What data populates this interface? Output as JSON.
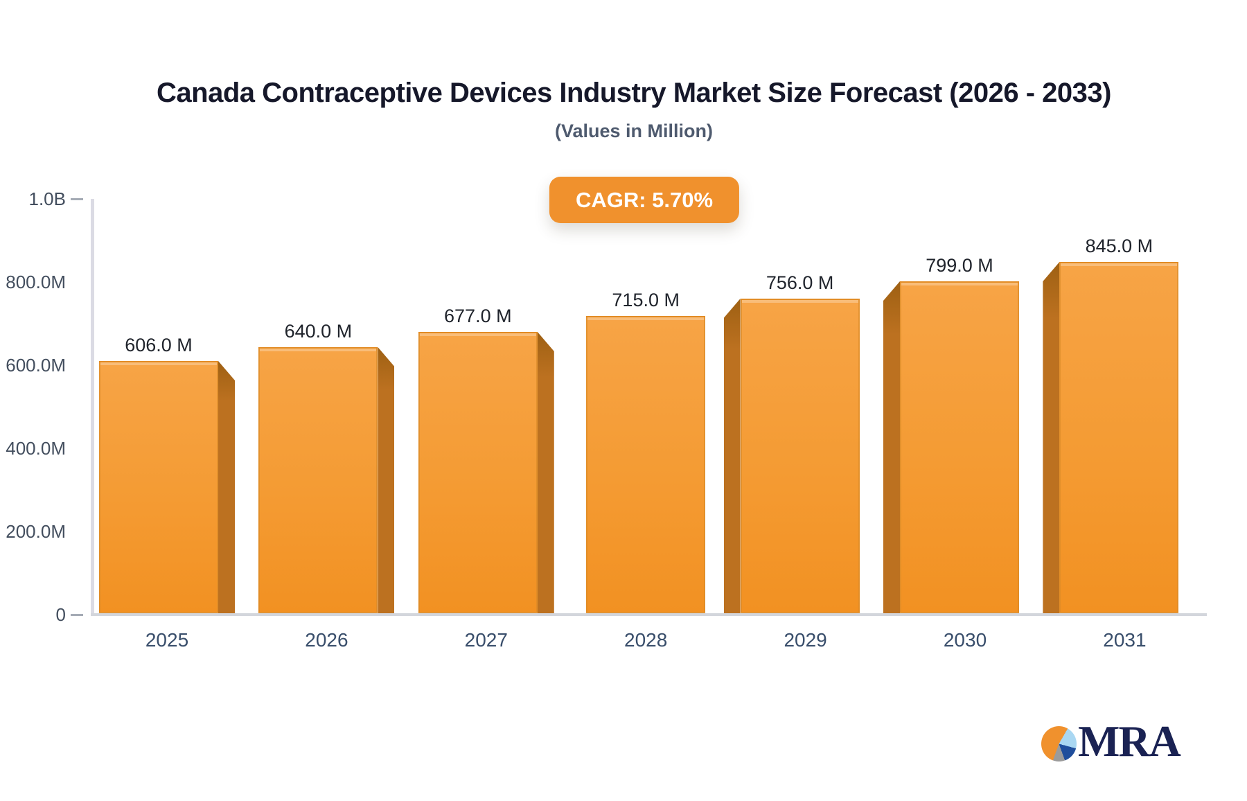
{
  "header": {
    "title": "Canada Contraceptive Devices Industry Market Size Forecast (2026 - 2033)",
    "subtitle": "(Values in Million)",
    "cagr_badge": "CAGR: 5.70%"
  },
  "chart_data": {
    "type": "bar",
    "title": "Canada Contraceptive Devices Industry Market Size Forecast (2026 - 2033)",
    "subtitle": "(Values in Million)",
    "cagr_percent": 5.7,
    "categories": [
      "2025",
      "2026",
      "2027",
      "2028",
      "2029",
      "2030",
      "2031"
    ],
    "values": [
      606.0,
      640.0,
      677.0,
      715.0,
      756.0,
      799.0,
      845.0
    ],
    "value_labels": [
      "606.0 M",
      "640.0 M",
      "677.0 M",
      "715.0 M",
      "756.0 M",
      "799.0 M",
      "845.0 M"
    ],
    "xlabel": "",
    "ylabel": "",
    "ylim": [
      0,
      1000
    ],
    "y_ticks": [
      {
        "label": "0",
        "value": 0
      },
      {
        "label": "200.0M",
        "value": 200
      },
      {
        "label": "400.0M",
        "value": 400
      },
      {
        "label": "600.0M",
        "value": 600
      },
      {
        "label": "800.0M",
        "value": 800
      },
      {
        "label": "1.0B",
        "value": 1000
      }
    ],
    "grid": false,
    "legend": "none",
    "colors": {
      "bar_front_top": "#F7A446",
      "bar_front_bottom": "#F29122",
      "bar_side": "#BC7120",
      "badge_bg": "#F0912D",
      "axis_line": "#D9DCE3",
      "tick_text": "#434E5E",
      "value_text": "#20242C",
      "title_text": "#16182A"
    }
  },
  "logo": {
    "text": "MRA",
    "pie_slices": [
      {
        "name": "orange",
        "color": "#F0912D"
      },
      {
        "name": "light-blue",
        "color": "#A9D7F2"
      },
      {
        "name": "dark-blue",
        "color": "#1F4E9C"
      },
      {
        "name": "gray",
        "color": "#9B9B9B"
      }
    ]
  }
}
